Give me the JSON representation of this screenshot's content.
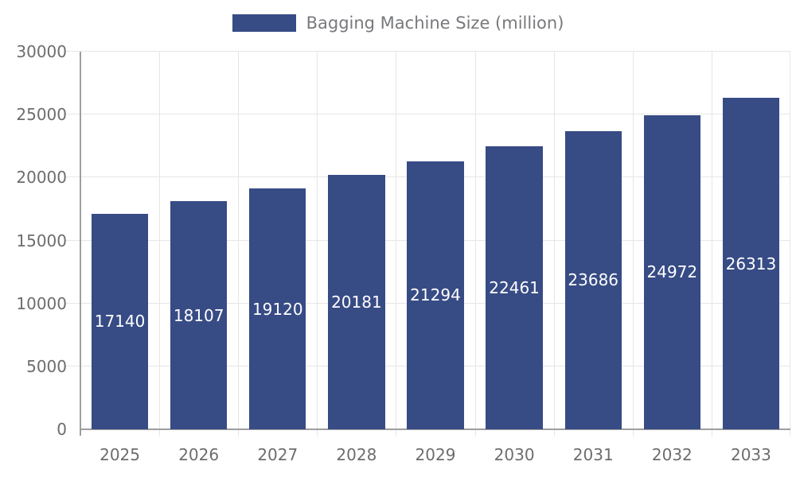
{
  "legend": {
    "label": "Bagging Machine Size (million)",
    "swatch_color": "#374b85"
  },
  "chart_data": {
    "type": "bar",
    "title": "",
    "xlabel": "",
    "ylabel": "",
    "series_name": "Bagging Machine Size (million)",
    "categories": [
      "2025",
      "2026",
      "2027",
      "2028",
      "2029",
      "2030",
      "2031",
      "2032",
      "2033"
    ],
    "values": [
      17140,
      18107,
      19120,
      20181,
      21294,
      22461,
      23686,
      24972,
      26313
    ],
    "data_labels": [
      "17140",
      "18107",
      "19120",
      "20181",
      "21294",
      "22461",
      "23686",
      "24972",
      "26313"
    ],
    "ylim": [
      0,
      30000
    ],
    "yticks": [
      0,
      5000,
      10000,
      15000,
      20000,
      25000,
      30000
    ],
    "ytick_labels": [
      "0",
      "5000",
      "10000",
      "15000",
      "20000",
      "25000",
      "30000"
    ],
    "grid": true,
    "legend_position": "top",
    "bar_color": "#374b85",
    "bar_label_color": "#ffffff",
    "grid_color": "#e6e6e6",
    "axis_line_color": "#9e9e9e",
    "axis_text_color": "#6d6d6d"
  }
}
